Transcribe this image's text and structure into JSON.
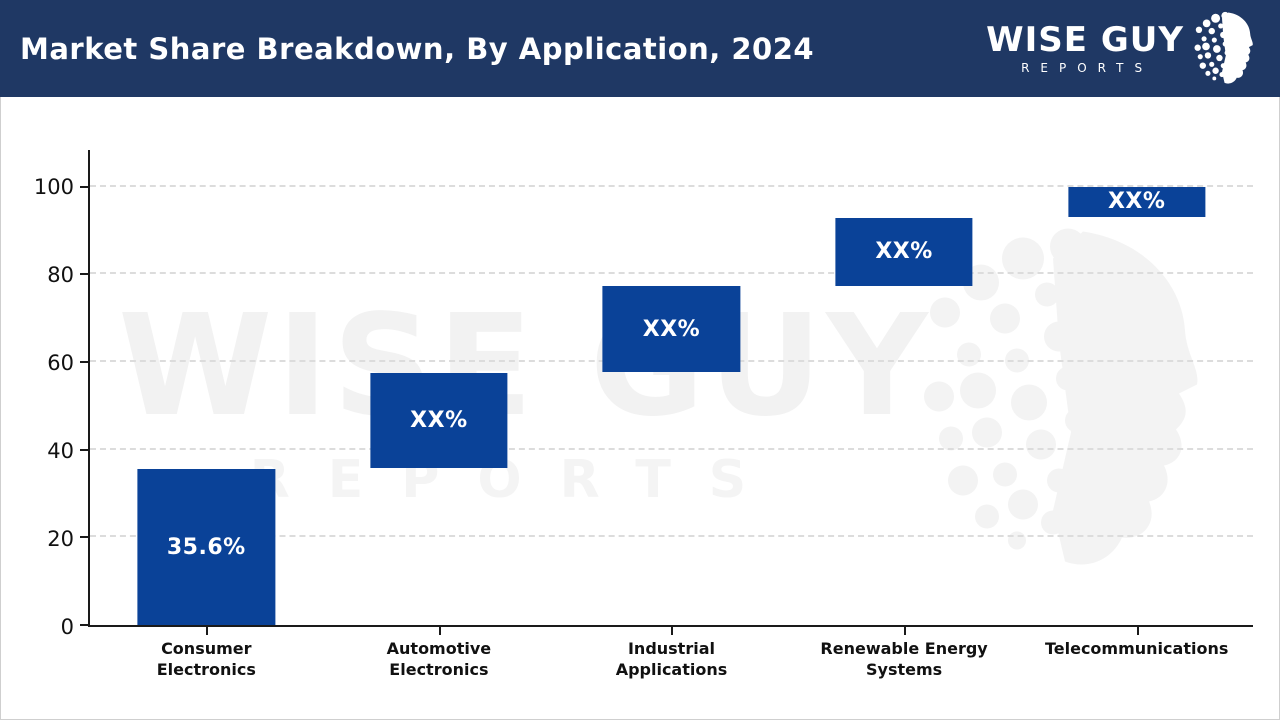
{
  "header": {
    "title": "Market Share Breakdown, By Application, 2024",
    "logo": {
      "wordmark": "WISE GUY",
      "subtext": "REPORTS",
      "face_icon": "dot-face-profile"
    }
  },
  "watermark": {
    "wordmark": "WISE GUY",
    "subtext": "REPORTS"
  },
  "colors": {
    "header_bg": "#1f3864",
    "bar": "#0a4298",
    "bar_label": "#ffffff",
    "grid": "#dcdcdc",
    "axis": "#1a1a1a",
    "watermark": "#f2f2f2",
    "page_bg": "#ffffff",
    "page_border": "#cfcfcf"
  },
  "chart_data": {
    "type": "bar",
    "subtype": "waterfall-percentage-breakdown",
    "title": "Market Share Breakdown, By Application, 2024",
    "categories": [
      "Consumer\nElectronics",
      "Automotive\nElectronics",
      "Industrial\nApplications",
      "Renewable Energy\nSystems",
      "Telecommunications"
    ],
    "segments": [
      {
        "category": "Consumer Electronics",
        "start": 0,
        "end": 35.6,
        "label": "35.6%"
      },
      {
        "category": "Automotive Electronics",
        "start": 35.9,
        "end": 57.5,
        "label": "XX%"
      },
      {
        "category": "Industrial Applications",
        "start": 57.7,
        "end": 77.3,
        "label": "XX%"
      },
      {
        "category": "Renewable Energy Systems",
        "start": 77.4,
        "end": 93.0,
        "label": "XX%"
      },
      {
        "category": "Telecommunications",
        "start": 93.2,
        "end": 100.0,
        "label": "XX%"
      }
    ],
    "yticks": [
      0,
      20,
      40,
      60,
      80,
      100
    ],
    "ylim": [
      0,
      108.4
    ],
    "grid": "horizontal-dashed",
    "legend": "none",
    "xlabel": "",
    "ylabel": ""
  }
}
